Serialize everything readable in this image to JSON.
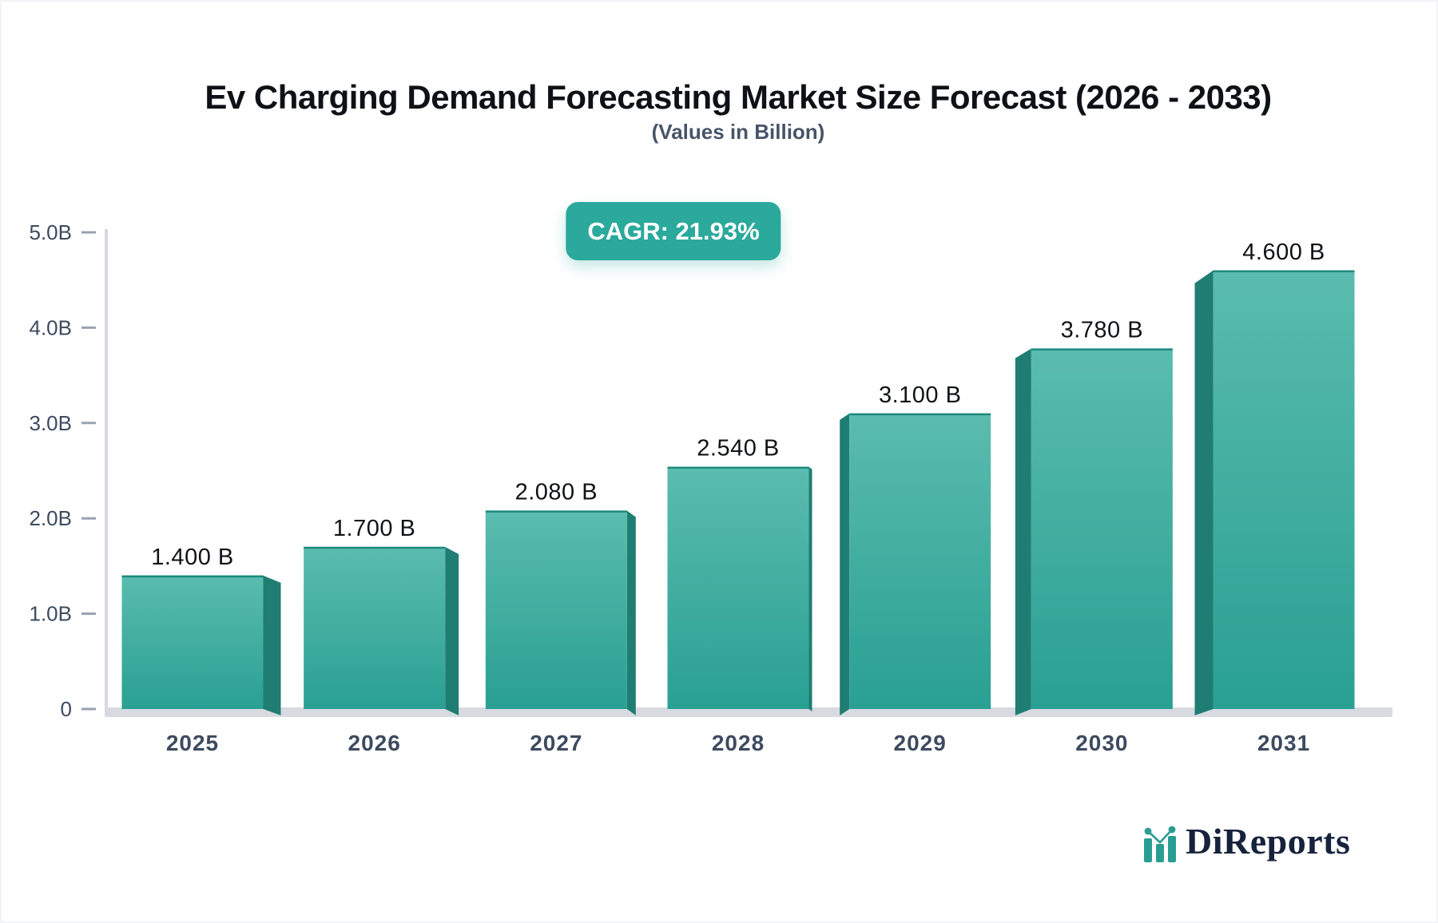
{
  "title": "Ev Charging Demand Forecasting Market Size Forecast (2026 - 2033)",
  "subtitle": "(Values in Billion)",
  "badge": {
    "label": "CAGR: 21.93%"
  },
  "chart_data": {
    "type": "bar",
    "categories": [
      "2025",
      "2026",
      "2027",
      "2028",
      "2029",
      "2030",
      "2031"
    ],
    "values": [
      1.4,
      1.7,
      2.08,
      2.54,
      3.1,
      3.78,
      4.6
    ],
    "value_labels": [
      "1.400 B",
      "1.700 B",
      "2.080 B",
      "2.540 B",
      "3.100 B",
      "3.780 B",
      "4.600 B"
    ],
    "yticks": [
      {
        "value": 0,
        "label": "0"
      },
      {
        "value": 1,
        "label": "1.0B"
      },
      {
        "value": 2,
        "label": "2.0B"
      },
      {
        "value": 3,
        "label": "3.0B"
      },
      {
        "value": 4,
        "label": "4.0B"
      },
      {
        "value": 5,
        "label": "5.0B"
      }
    ],
    "ylim": [
      0,
      5
    ],
    "title": "Ev Charging Demand Forecasting Market Size Forecast (2026 - 2033)",
    "xlabel": "",
    "ylabel": "",
    "grid": false,
    "legend": false,
    "bar_style": "3d-perspective-gradient"
  },
  "logo": {
    "text": "DiReports",
    "icon": "bar-chart-logo-icon"
  },
  "colors": {
    "accent_teal": "#2aa99c",
    "bar_face_top": "#5abcae",
    "bar_face_bottom": "#29a093",
    "bar_side": "#1f7d73",
    "bar_top_edge": "#1b8a7d",
    "axis_line": "#d6d8e0",
    "floor": "#d8dae1",
    "tick_dash": "#9aa2b1",
    "axis_label": "#3d4a5f",
    "value_label": "#101316",
    "logo_navy": "#17233c",
    "logo_teal": "#2a9d92"
  }
}
